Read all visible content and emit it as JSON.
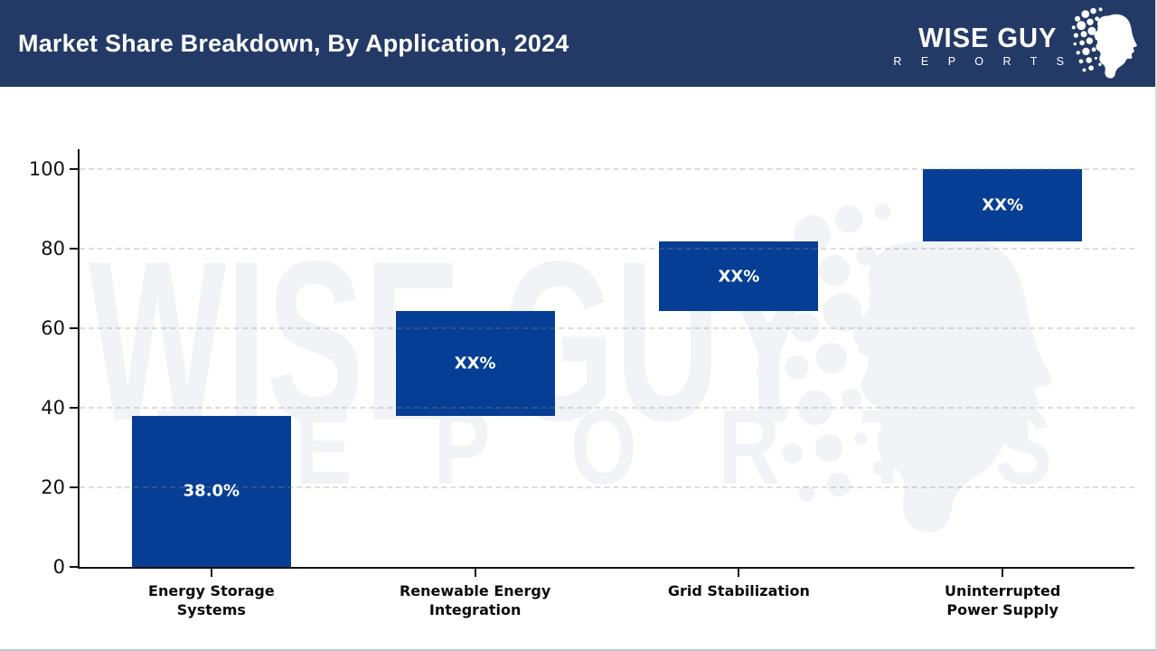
{
  "header": {
    "title": "Market Share Breakdown, By Application, 2024",
    "brand": {
      "name": "WISE GUY",
      "sub": "R E P O R T S"
    }
  },
  "watermark": {
    "line1": "WISE GUY",
    "line2": "R E P O R T S"
  },
  "chart_data": {
    "type": "bar",
    "subtype": "waterfall",
    "title": "Market Share Breakdown, By Application, 2024",
    "categories": [
      "Energy Storage\nSystems",
      "Renewable Energy\nIntegration",
      "Grid Stabilization",
      "Uninterrupted\nPower Supply"
    ],
    "series": [
      {
        "name": "Market Share",
        "segments": [
          {
            "category": "Energy Storage Systems",
            "start": 0.0,
            "end": 38.0,
            "label": "38.0%"
          },
          {
            "category": "Renewable Energy Integration",
            "start": 38.0,
            "end": 64.3,
            "label": "XX%"
          },
          {
            "category": "Grid Stabilization",
            "start": 64.3,
            "end": 81.8,
            "label": "XX%"
          },
          {
            "category": "Uninterrupted Power Supply",
            "start": 81.8,
            "end": 100.0,
            "label": "XX%"
          }
        ]
      }
    ],
    "xlabel": "",
    "ylabel": "",
    "y_ticks": [
      0,
      20,
      40,
      60,
      80,
      100
    ],
    "ylim": [
      0,
      105
    ],
    "grid": true,
    "legend": false,
    "colors": {
      "bar": "#053e94",
      "bar_label": "#ffffff",
      "header_bg": "#233a67",
      "axis": "#111111",
      "gridline": "#d8d8d8",
      "watermark": "#f2f3f6"
    }
  }
}
